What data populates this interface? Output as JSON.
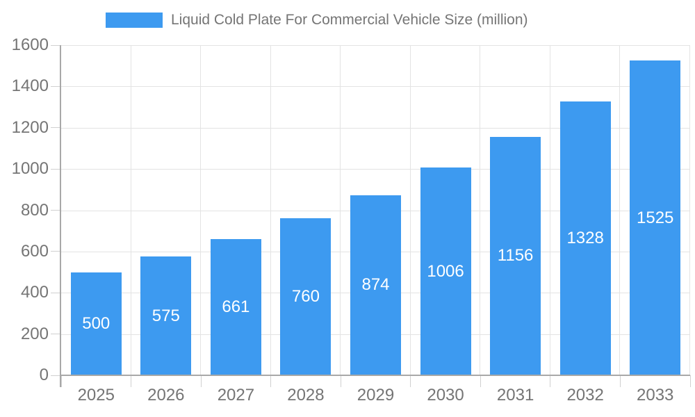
{
  "chart_data": {
    "type": "bar",
    "title": "Liquid Cold Plate For Commercial Vehicle Size (million)",
    "categories": [
      "2025",
      "2026",
      "2027",
      "2028",
      "2029",
      "2030",
      "2031",
      "2032",
      "2033"
    ],
    "values": [
      500,
      575,
      661,
      760,
      874,
      1006,
      1156,
      1328,
      1525
    ],
    "series": [
      {
        "name": "Liquid Cold Plate For Commercial Vehicle Size (million)",
        "values": [
          500,
          575,
          661,
          760,
          874,
          1006,
          1156,
          1328,
          1525
        ]
      }
    ],
    "xlabel": "",
    "ylabel": "",
    "ylim": [
      0,
      1600
    ],
    "ytick_step": 200,
    "ytick_labels": [
      "0",
      "200",
      "400",
      "600",
      "800",
      "1000",
      "1200",
      "1400",
      "1600"
    ],
    "grid": true,
    "legend_position": "top-center",
    "value_labels": "inside-center",
    "colors": {
      "bar": "#3D9AF0",
      "grid": "#e3e3e3",
      "tick": "#d0d0d0",
      "axis": "#a8a8a8",
      "text": "#757575",
      "value_label": "#ffffff",
      "background": "#ffffff"
    }
  }
}
